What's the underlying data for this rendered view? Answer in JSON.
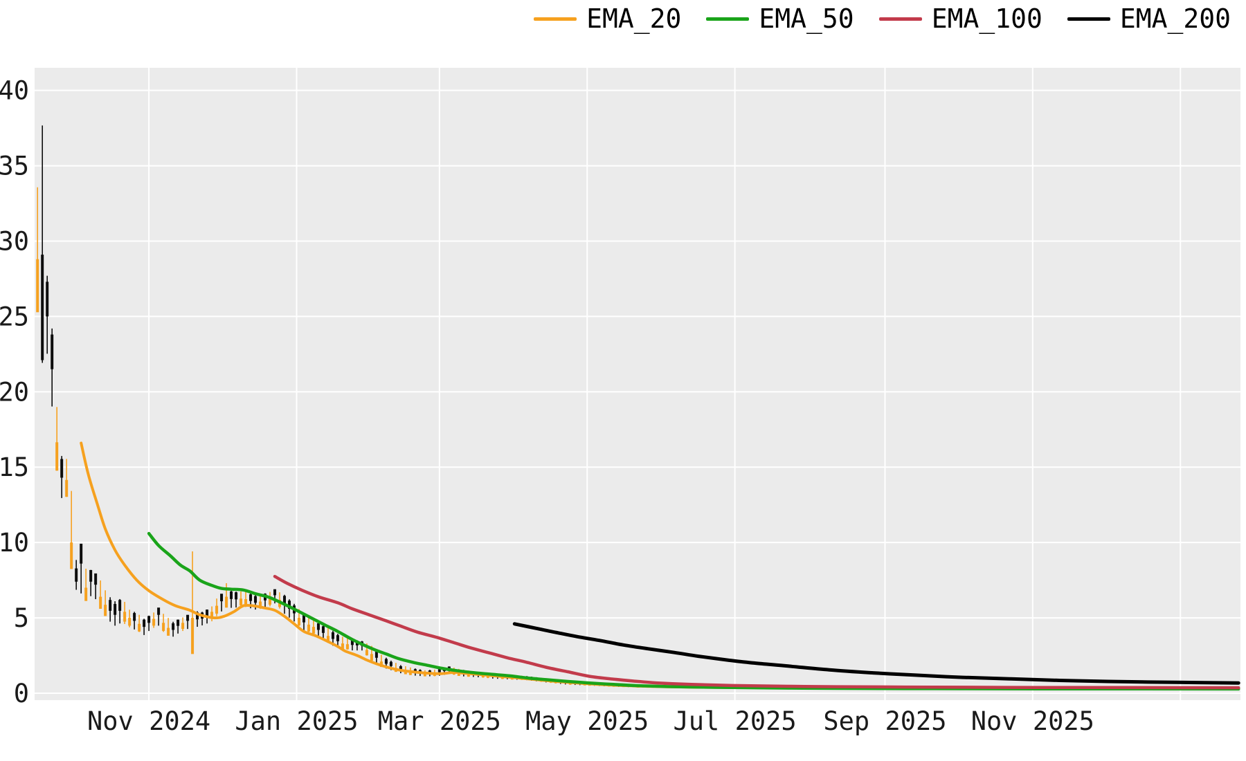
{
  "legend": {
    "items": [
      {
        "label": "EMA_20",
        "color": "#f6a11f"
      },
      {
        "label": "EMA_50",
        "color": "#1aa41a"
      },
      {
        "label": "EMA_100",
        "color": "#c23b4b"
      },
      {
        "label": "EMA_200",
        "color": "#000000"
      }
    ]
  },
  "chart_data": {
    "type": "candlestick",
    "title": "",
    "style": {
      "plot_bg": "#ebebeb",
      "grid_color": "#ffffff",
      "tick_label_color": "#1a1a1a",
      "up_color": "#f6a11f",
      "down_color": "#0d0d0d"
    },
    "y_axis": {
      "ticks": [
        0,
        5,
        10,
        15,
        20,
        25,
        30,
        35,
        40
      ],
      "range": [
        -0.46,
        41.5
      ]
    },
    "x_axis": {
      "range_days": [
        -1.2,
        496.8
      ],
      "ticks": [
        {
          "day": 46,
          "label": "Nov 2024"
        },
        {
          "day": 107,
          "label": "Jan 2025"
        },
        {
          "day": 166,
          "label": "Mar 2025"
        },
        {
          "day": 227,
          "label": "May 2025"
        },
        {
          "day": 288,
          "label": "Jul 2025"
        },
        {
          "day": 350,
          "label": "Sep 2025"
        },
        {
          "day": 411,
          "label": "Nov 2025"
        },
        {
          "day": 472,
          "label": ""
        }
      ]
    },
    "series": [
      {
        "name": "EMA_20",
        "color": "#f6a11f",
        "width": 4,
        "points": [
          [
            18,
            16.6
          ],
          [
            21,
            14.5
          ],
          [
            25,
            12.4
          ],
          [
            28,
            10.9
          ],
          [
            32,
            9.5
          ],
          [
            36,
            8.5
          ],
          [
            41,
            7.5
          ],
          [
            46,
            6.8
          ],
          [
            52,
            6.2
          ],
          [
            57,
            5.8
          ],
          [
            63,
            5.5
          ],
          [
            67,
            5.2
          ],
          [
            73,
            5.0
          ],
          [
            77,
            5.1
          ],
          [
            81,
            5.4
          ],
          [
            85,
            5.8
          ],
          [
            89,
            5.8
          ],
          [
            94,
            5.65
          ],
          [
            98,
            5.5
          ],
          [
            102,
            5.1
          ],
          [
            106,
            4.6
          ],
          [
            110,
            4.1
          ],
          [
            115,
            3.8
          ],
          [
            119,
            3.5
          ],
          [
            124,
            3.1
          ],
          [
            127,
            2.8
          ],
          [
            132,
            2.5
          ],
          [
            136,
            2.2
          ],
          [
            140,
            1.95
          ],
          [
            145,
            1.7
          ],
          [
            150,
            1.52
          ],
          [
            156,
            1.4
          ],
          [
            162,
            1.32
          ],
          [
            167,
            1.3
          ],
          [
            172,
            1.38
          ],
          [
            176,
            1.33
          ],
          [
            182,
            1.25
          ],
          [
            188,
            1.16
          ],
          [
            195,
            1.06
          ],
          [
            202,
            0.96
          ],
          [
            210,
            0.84
          ],
          [
            219,
            0.72
          ],
          [
            228,
            0.62
          ],
          [
            238,
            0.53
          ],
          [
            248,
            0.47
          ],
          [
            260,
            0.42
          ],
          [
            275,
            0.39
          ],
          [
            290,
            0.37
          ],
          [
            310,
            0.35
          ],
          [
            330,
            0.33
          ],
          [
            360,
            0.31
          ],
          [
            400,
            0.3
          ],
          [
            440,
            0.3
          ],
          [
            496,
            0.3
          ]
        ]
      },
      {
        "name": "EMA_50",
        "color": "#1aa41a",
        "width": 4.5,
        "points": [
          [
            46,
            10.6
          ],
          [
            50,
            9.8
          ],
          [
            55,
            9.1
          ],
          [
            59,
            8.5
          ],
          [
            63,
            8.1
          ],
          [
            67,
            7.5
          ],
          [
            72,
            7.15
          ],
          [
            76,
            6.95
          ],
          [
            80,
            6.9
          ],
          [
            85,
            6.85
          ],
          [
            90,
            6.6
          ],
          [
            95,
            6.4
          ],
          [
            98,
            6.2
          ],
          [
            102,
            5.9
          ],
          [
            107,
            5.5
          ],
          [
            113,
            5.0
          ],
          [
            119,
            4.5
          ],
          [
            124,
            4.1
          ],
          [
            129,
            3.65
          ],
          [
            134,
            3.25
          ],
          [
            139,
            2.9
          ],
          [
            144,
            2.6
          ],
          [
            149,
            2.3
          ],
          [
            155,
            2.05
          ],
          [
            161,
            1.85
          ],
          [
            167,
            1.65
          ],
          [
            173,
            1.5
          ],
          [
            181,
            1.35
          ],
          [
            188,
            1.25
          ],
          [
            195,
            1.15
          ],
          [
            203,
            1.0
          ],
          [
            210,
            0.9
          ],
          [
            219,
            0.78
          ],
          [
            228,
            0.68
          ],
          [
            238,
            0.58
          ],
          [
            248,
            0.5
          ],
          [
            260,
            0.44
          ],
          [
            275,
            0.4
          ],
          [
            290,
            0.37
          ],
          [
            310,
            0.34
          ],
          [
            330,
            0.32
          ],
          [
            370,
            0.3
          ],
          [
            413,
            0.29
          ],
          [
            496,
            0.28
          ]
        ]
      },
      {
        "name": "EMA_100",
        "color": "#c23b4b",
        "width": 4.5,
        "points": [
          [
            98,
            7.75
          ],
          [
            103,
            7.3
          ],
          [
            109,
            6.85
          ],
          [
            116,
            6.4
          ],
          [
            124,
            6.0
          ],
          [
            130,
            5.6
          ],
          [
            137,
            5.2
          ],
          [
            144,
            4.8
          ],
          [
            150,
            4.45
          ],
          [
            157,
            4.05
          ],
          [
            165,
            3.7
          ],
          [
            172,
            3.35
          ],
          [
            179,
            3.0
          ],
          [
            186,
            2.7
          ],
          [
            194,
            2.35
          ],
          [
            202,
            2.05
          ],
          [
            210,
            1.72
          ],
          [
            219,
            1.42
          ],
          [
            228,
            1.12
          ],
          [
            238,
            0.93
          ],
          [
            248,
            0.78
          ],
          [
            257,
            0.67
          ],
          [
            270,
            0.58
          ],
          [
            287,
            0.51
          ],
          [
            310,
            0.46
          ],
          [
            330,
            0.43
          ],
          [
            370,
            0.4
          ],
          [
            413,
            0.38
          ],
          [
            456,
            0.37
          ],
          [
            496,
            0.36
          ]
        ]
      },
      {
        "name": "EMA_200",
        "color": "#000000",
        "width": 5,
        "points": [
          [
            197,
            4.6
          ],
          [
            206,
            4.3
          ],
          [
            215,
            4.0
          ],
          [
            223,
            3.75
          ],
          [
            232,
            3.5
          ],
          [
            242,
            3.2
          ],
          [
            252,
            2.95
          ],
          [
            263,
            2.7
          ],
          [
            273,
            2.45
          ],
          [
            285,
            2.2
          ],
          [
            296,
            2.0
          ],
          [
            310,
            1.8
          ],
          [
            327,
            1.55
          ],
          [
            345,
            1.35
          ],
          [
            362,
            1.2
          ],
          [
            382,
            1.05
          ],
          [
            402,
            0.95
          ],
          [
            422,
            0.85
          ],
          [
            442,
            0.78
          ],
          [
            470,
            0.72
          ],
          [
            496,
            0.68
          ]
        ]
      }
    ],
    "price": {
      "bar_step_days": 2,
      "last_day": 490,
      "direction_pattern": "UDDDUDUUDDUDDUUDDDUUDUDDUDUUDDUDUDDDUUDUDDUUDDUDUD",
      "anchors": [
        [
          0,
          28.8,
          25.3,
          34.1
        ],
        [
          1,
          24.0,
          22.0,
          30.0
        ],
        [
          2,
          22.1,
          21.9,
          39.4
        ],
        [
          3,
          26.5,
          23.5,
          29.5
        ],
        [
          5,
          23.5,
          21.0,
          26.5
        ],
        [
          7,
          19.5,
          16.5,
          22.5
        ],
        [
          9,
          13.8,
          12.6,
          16.0
        ],
        [
          11,
          14.8,
          13.0,
          15.8
        ],
        [
          13,
          13.5,
          12.8,
          15.6
        ],
        [
          14,
          10.0,
          9.4,
          13.8
        ],
        [
          16,
          7.4,
          6.8,
          9.0
        ],
        [
          18,
          8.6,
          6.4,
          9.7
        ],
        [
          20,
          7.0,
          6.2,
          8.4
        ],
        [
          23,
          7.6,
          6.4,
          8.2
        ],
        [
          26,
          6.4,
          5.6,
          7.6
        ],
        [
          29,
          5.6,
          4.8,
          6.6
        ],
        [
          32,
          5.2,
          4.4,
          6.2
        ],
        [
          35,
          5.6,
          4.6,
          6.4
        ],
        [
          38,
          5.0,
          4.3,
          5.6
        ],
        [
          41,
          4.7,
          4.1,
          5.4
        ],
        [
          44,
          4.4,
          3.8,
          5.0
        ],
        [
          47,
          4.8,
          4.2,
          5.3
        ],
        [
          50,
          5.2,
          4.4,
          5.6
        ],
        [
          53,
          4.4,
          3.8,
          5.2
        ],
        [
          56,
          4.2,
          3.7,
          4.8
        ],
        [
          59,
          4.6,
          4.0,
          5.0
        ],
        [
          62,
          4.8,
          4.2,
          5.2
        ],
        [
          63,
          4.7,
          4.0,
          5.2
        ],
        [
          64,
          5.0,
          3.9,
          9.9
        ],
        [
          65,
          4.9,
          4.3,
          5.6
        ],
        [
          67,
          4.9,
          4.4,
          5.4
        ],
        [
          69,
          5.0,
          4.5,
          5.5
        ],
        [
          72,
          5.4,
          4.7,
          5.8
        ],
        [
          75,
          6.0,
          5.2,
          6.6
        ],
        [
          77,
          6.2,
          5.5,
          6.6
        ],
        [
          78,
          6.4,
          5.6,
          7.4
        ],
        [
          79,
          6.3,
          5.6,
          6.9
        ],
        [
          81,
          6.2,
          5.6,
          6.8
        ],
        [
          85,
          6.3,
          5.7,
          6.8
        ],
        [
          90,
          6.0,
          5.5,
          6.6
        ],
        [
          95,
          6.2,
          5.6,
          6.7
        ],
        [
          98,
          6.5,
          5.9,
          6.9
        ],
        [
          102,
          5.9,
          5.2,
          6.6
        ],
        [
          106,
          5.3,
          4.7,
          6.0
        ],
        [
          110,
          4.7,
          4.1,
          5.3
        ],
        [
          114,
          4.4,
          3.9,
          5.0
        ],
        [
          118,
          4.0,
          3.5,
          4.6
        ],
        [
          122,
          3.6,
          3.1,
          4.2
        ],
        [
          126,
          3.3,
          2.9,
          3.8
        ],
        [
          130,
          3.2,
          2.8,
          3.6
        ],
        [
          134,
          3.15,
          2.8,
          3.5
        ],
        [
          138,
          2.6,
          2.1,
          3.2
        ],
        [
          142,
          2.1,
          1.7,
          2.6
        ],
        [
          146,
          1.8,
          1.5,
          2.2
        ],
        [
          150,
          1.55,
          1.3,
          1.9
        ],
        [
          155,
          1.4,
          1.15,
          1.7
        ],
        [
          160,
          1.3,
          1.1,
          1.55
        ],
        [
          165,
          1.35,
          1.1,
          1.6
        ],
        [
          170,
          1.55,
          1.25,
          1.8
        ],
        [
          175,
          1.3,
          1.1,
          1.6
        ],
        [
          181,
          1.25,
          1.05,
          1.45
        ],
        [
          188,
          1.15,
          0.95,
          1.35
        ],
        [
          195,
          1.05,
          0.9,
          1.25
        ],
        [
          202,
          1.0,
          0.85,
          1.15
        ],
        [
          210,
          0.85,
          0.7,
          1.0
        ],
        [
          219,
          0.7,
          0.55,
          0.85
        ],
        [
          228,
          0.6,
          0.5,
          0.75
        ],
        [
          238,
          0.52,
          0.42,
          0.65
        ],
        [
          248,
          0.45,
          0.38,
          0.58
        ],
        [
          260,
          0.42,
          0.34,
          0.52
        ],
        [
          275,
          0.38,
          0.3,
          0.48
        ],
        [
          290,
          0.35,
          0.28,
          0.44
        ],
        [
          310,
          0.33,
          0.27,
          0.4
        ],
        [
          330,
          0.32,
          0.26,
          0.38
        ],
        [
          360,
          0.3,
          0.25,
          0.36
        ],
        [
          400,
          0.3,
          0.25,
          0.35
        ],
        [
          440,
          0.29,
          0.24,
          0.34
        ],
        [
          490,
          0.29,
          0.24,
          0.34
        ]
      ]
    }
  }
}
